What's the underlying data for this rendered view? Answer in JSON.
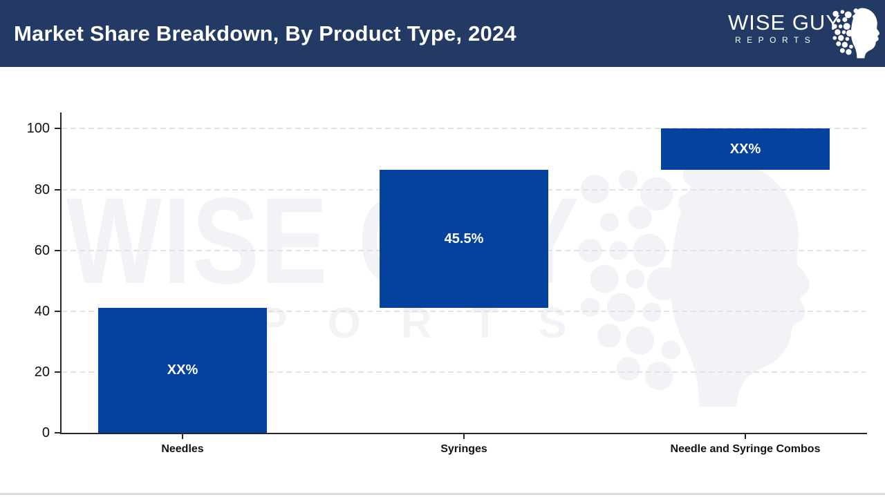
{
  "header": {
    "title": "Market Share Breakdown, By Product Type, 2024",
    "logo_line1": "WISE GUY",
    "logo_line2": "REPORTS"
  },
  "watermark": {
    "line1": "WISE GUY",
    "line2": "REPORTS"
  },
  "chart_data": {
    "type": "bar",
    "variant": "stacked-percentage-waterfall",
    "title": "Market Share Breakdown, By Product Type, 2024",
    "categories": [
      "Needles",
      "Syringes",
      "Needle and Syringe Combos"
    ],
    "segments": [
      {
        "category": "Needles",
        "start": 0,
        "end": 41,
        "label": "XX%"
      },
      {
        "category": "Syringes",
        "start": 41,
        "end": 86.5,
        "label": "45.5%"
      },
      {
        "category": "Needle and Syringe Combos",
        "start": 86.5,
        "end": 100,
        "label": "XX%"
      }
    ],
    "yticks": [
      0,
      20,
      40,
      60,
      80,
      100
    ],
    "ylim": [
      0,
      105
    ],
    "xlabel": "",
    "ylabel": "",
    "grid": "horizontal-dashed",
    "legend": "none",
    "bar_color": "#05429d"
  },
  "colors": {
    "header_bg": "#233a64",
    "bar": "#05429d",
    "watermark": "#f2f3f6",
    "axis": "#262626",
    "gridline": "#e2e2e2",
    "footer_strip": "#dcdcdc"
  }
}
